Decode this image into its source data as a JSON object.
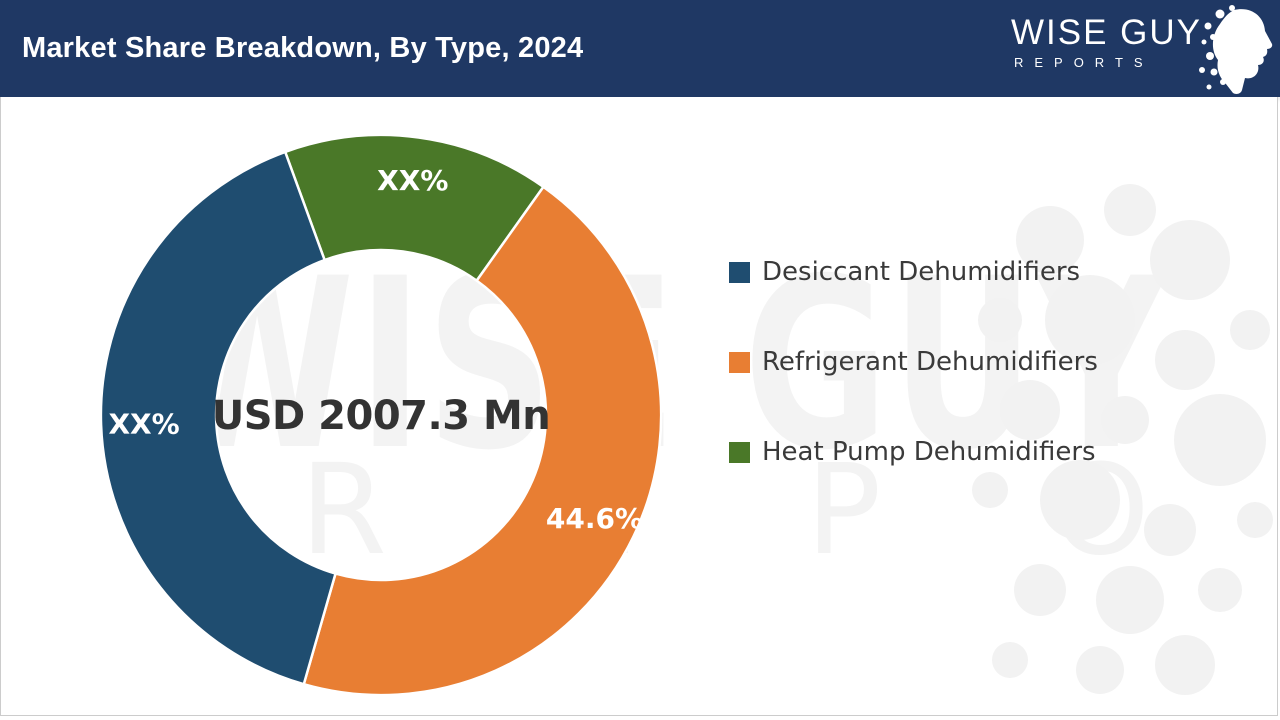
{
  "header": {
    "title": "Market Share Breakdown, By Type, 2024",
    "bg_color": "#1F3864",
    "logo": {
      "line1": "WISE GUY",
      "line2": "REPORTS"
    }
  },
  "watermark": {
    "line1": "WISE GUY",
    "line2": "REPORTS"
  },
  "legend": [
    {
      "label": "Desiccant Dehumidifiers",
      "color": "#1F4D70"
    },
    {
      "label": "Refrigerant Dehumidifiers",
      "color": "#E87E33"
    },
    {
      "label": "Heat Pump Dehumidifiers",
      "color": "#4A7828"
    }
  ],
  "chart_data": {
    "type": "pie",
    "variant": "donut",
    "title": "Market Share Breakdown, By Type, 2024",
    "center_label": "USD 2007.3 Mn",
    "start_angle_deg": -20,
    "direction": "clockwise",
    "inner_radius_ratio": 0.59,
    "legend_position": "right",
    "segments": [
      {
        "name": "Heat Pump Dehumidifiers",
        "value_pct": 15.4,
        "estimated_from_arc": true,
        "display_label": "XX%",
        "color": "#4A7828",
        "label_color": "#ffffff"
      },
      {
        "name": "Refrigerant Dehumidifiers",
        "value_pct": 44.6,
        "estimated_from_arc": false,
        "display_label": "44.6%",
        "color": "#E87E33",
        "label_color": "#ffffff"
      },
      {
        "name": "Desiccant Dehumidifiers",
        "value_pct": 40.0,
        "estimated_from_arc": true,
        "display_label": "XX%",
        "color": "#1F4D70",
        "label_color": "#ffffff"
      }
    ]
  }
}
